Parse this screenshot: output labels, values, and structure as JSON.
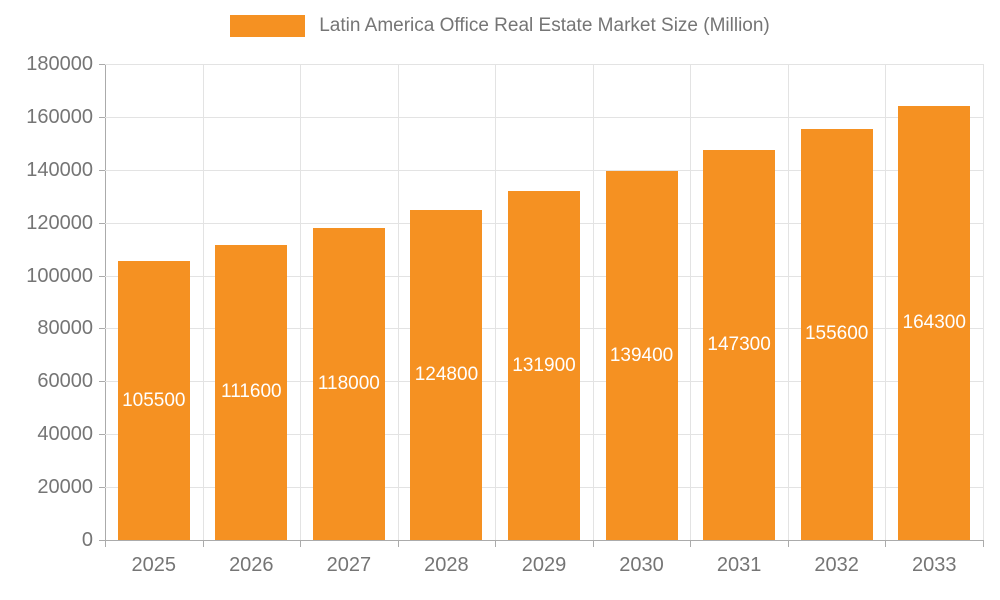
{
  "chart_data": {
    "type": "bar",
    "title": "Latin America Office Real Estate Market Size (Million)",
    "categories": [
      "2025",
      "2026",
      "2027",
      "2028",
      "2029",
      "2030",
      "2031",
      "2032",
      "2033"
    ],
    "values": [
      105500,
      111600,
      118000,
      124800,
      131900,
      139400,
      147300,
      155600,
      164300
    ],
    "xlabel": "",
    "ylabel": "",
    "ylim": [
      0,
      180000
    ],
    "ytick_step": 20000,
    "ytick_labels": [
      "0",
      "20000",
      "40000",
      "60000",
      "80000",
      "100000",
      "120000",
      "140000",
      "160000",
      "180000"
    ],
    "grid": true,
    "legend_position": "top",
    "bar_color": "#f59122",
    "bar_label_color": "#ffffff",
    "axis_text_color": "#757575"
  },
  "legend": {
    "label": "Latin America Office Real Estate Market Size (Million)"
  }
}
